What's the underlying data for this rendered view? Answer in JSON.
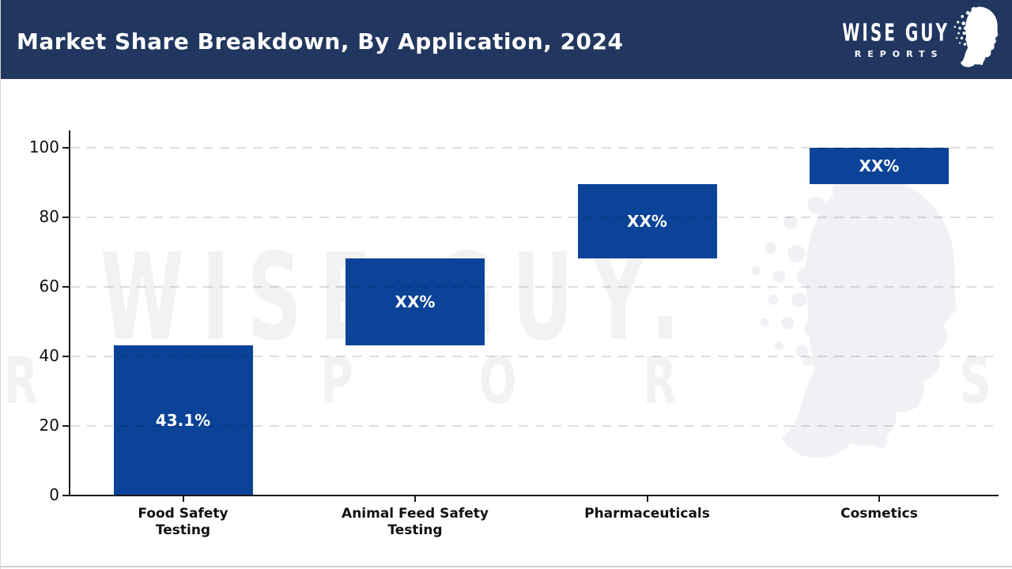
{
  "header": {
    "title": "Market Share Breakdown, By Application, 2024",
    "logo": {
      "line1": "WISE GUY",
      "line2": "REPORTS"
    },
    "bg_color": "#21375F",
    "text_color": "#FFFFFF"
  },
  "watermark": {
    "line1": "WISE GUY.",
    "line2": "R E P O R T S",
    "color": "#F2F2F5",
    "head_icon": "dotted-face-profile"
  },
  "chart_data": {
    "type": "bar",
    "variant": "waterfall",
    "title": "Market Share Breakdown, By Application, 2024",
    "categories": [
      "Food Safety\nTesting",
      "Animal Feed Safety\nTesting",
      "Pharmaceuticals",
      "Cosmetics"
    ],
    "segments": [
      {
        "category": "Food Safety Testing",
        "start": 0,
        "end": 43.1,
        "value": 43.1,
        "label": "43.1%"
      },
      {
        "category": "Animal Feed Safety Testing",
        "start": 43.1,
        "end": 68.2,
        "value": 25.1,
        "label": "XX%"
      },
      {
        "category": "Pharmaceuticals",
        "start": 68.2,
        "end": 89.5,
        "value": 21.3,
        "label": "XX%"
      },
      {
        "category": "Cosmetics",
        "start": 89.5,
        "end": 100,
        "value": 10.5,
        "label": "XX%"
      }
    ],
    "xlabel": "",
    "ylabel": "",
    "ylim": [
      0,
      100
    ],
    "yticks": [
      "0",
      "20",
      "40",
      "60",
      "80",
      "100"
    ],
    "grid": true,
    "grid_style": "dashed",
    "legend": false,
    "bar_color": "#0A4397",
    "bar_label_color": "#FFFFFF",
    "axis_color": "#1A1A1A"
  }
}
